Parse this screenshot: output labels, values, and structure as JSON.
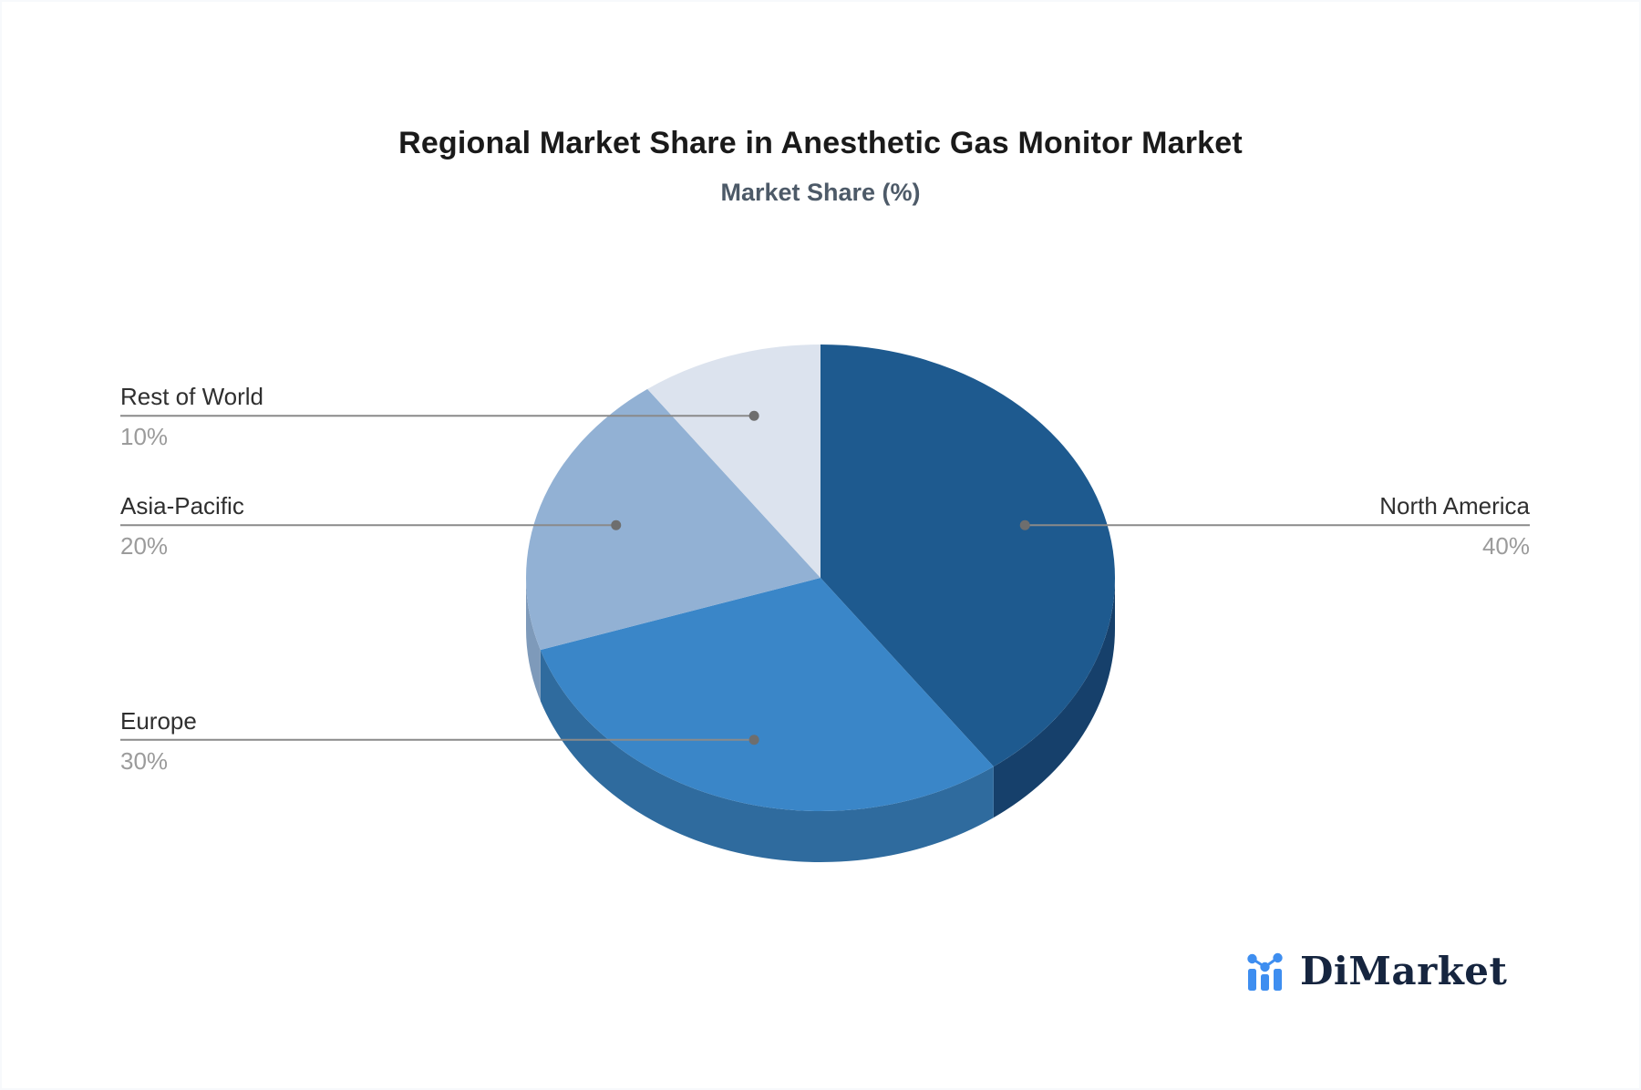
{
  "header": {
    "title": "Regional Market Share in Anesthetic Gas Monitor Market",
    "subtitle": "Market Share (%)"
  },
  "chart_data": {
    "type": "pie",
    "style": "3d",
    "title": "Regional Market Share in Anesthetic Gas Monitor Market",
    "subtitle": "Market Share (%)",
    "unit": "%",
    "start_angle": "top",
    "direction": "clockwise",
    "legend": "none",
    "slices": [
      {
        "label": "North America",
        "value": 40,
        "display": "40%",
        "color": "#1E5A8F",
        "side_color": "#16406B",
        "callout": "right"
      },
      {
        "label": "Europe",
        "value": 30,
        "display": "30%",
        "color": "#3A86C8",
        "side_color": "#2F6B9E",
        "callout": "left"
      },
      {
        "label": "Asia-Pacific",
        "value": 20,
        "display": "20%",
        "color": "#92B1D4",
        "side_color": "#7E9ABA",
        "callout": "left"
      },
      {
        "label": "Rest of World",
        "value": 10,
        "display": "10%",
        "color": "#DCE3EE",
        "side_color": "#C2CCDC",
        "callout": "left"
      }
    ],
    "callout_line_color": "#8a8a8a",
    "callout_dot_color": "#6e6e6e",
    "label_color": "#2f2f2f",
    "pct_color": "#9b9b9b"
  },
  "footer": {
    "brand": "DiMarket",
    "logo_icon": "bar-chart-trend-icon",
    "logo_accent": "#3E8EF0"
  }
}
